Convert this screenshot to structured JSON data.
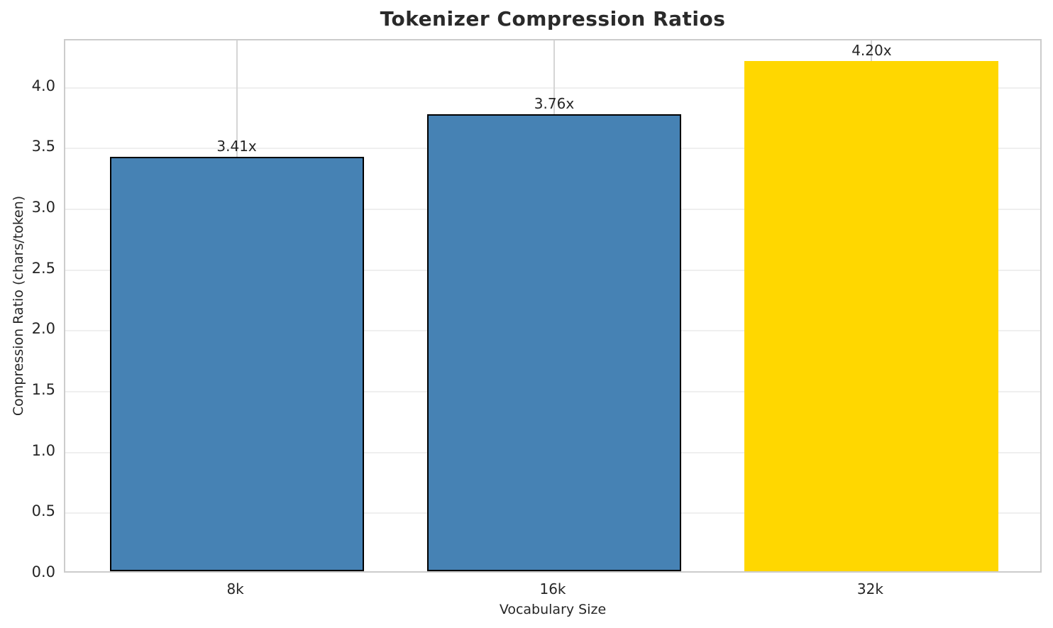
{
  "chart_data": {
    "type": "bar",
    "title": "Tokenizer Compression Ratios",
    "xlabel": "Vocabulary Size",
    "ylabel": "Compression Ratio (chars/token)",
    "categories": [
      "8k",
      "16k",
      "32k"
    ],
    "values": [
      3.41,
      3.76,
      4.2
    ],
    "bar_value_labels": [
      "3.41x",
      "3.76x",
      "4.20x"
    ],
    "bar_colors": [
      "#4682b4",
      "#4682b4",
      "#ffd700"
    ],
    "bar_edge_colors": [
      "#000000",
      "#000000",
      "#ffd700"
    ],
    "ylim": [
      0,
      4.39
    ],
    "yticks": [
      0.0,
      0.5,
      1.0,
      1.5,
      2.0,
      2.5,
      3.0,
      3.5,
      4.0
    ],
    "ytick_labels": [
      "0.0",
      "0.5",
      "1.0",
      "1.5",
      "2.0",
      "2.5",
      "3.0",
      "3.5",
      "4.0"
    ],
    "grid": {
      "horizontal": true,
      "vertical": true
    },
    "legend_position": "none",
    "colors": {
      "background": "#ffffff",
      "spine": "#cccccc",
      "h_grid": "#efefef",
      "v_grid": "#d5d5d5",
      "text": "#262626",
      "bar_blue": "#4682b4",
      "bar_gold": "#ffd700"
    }
  }
}
